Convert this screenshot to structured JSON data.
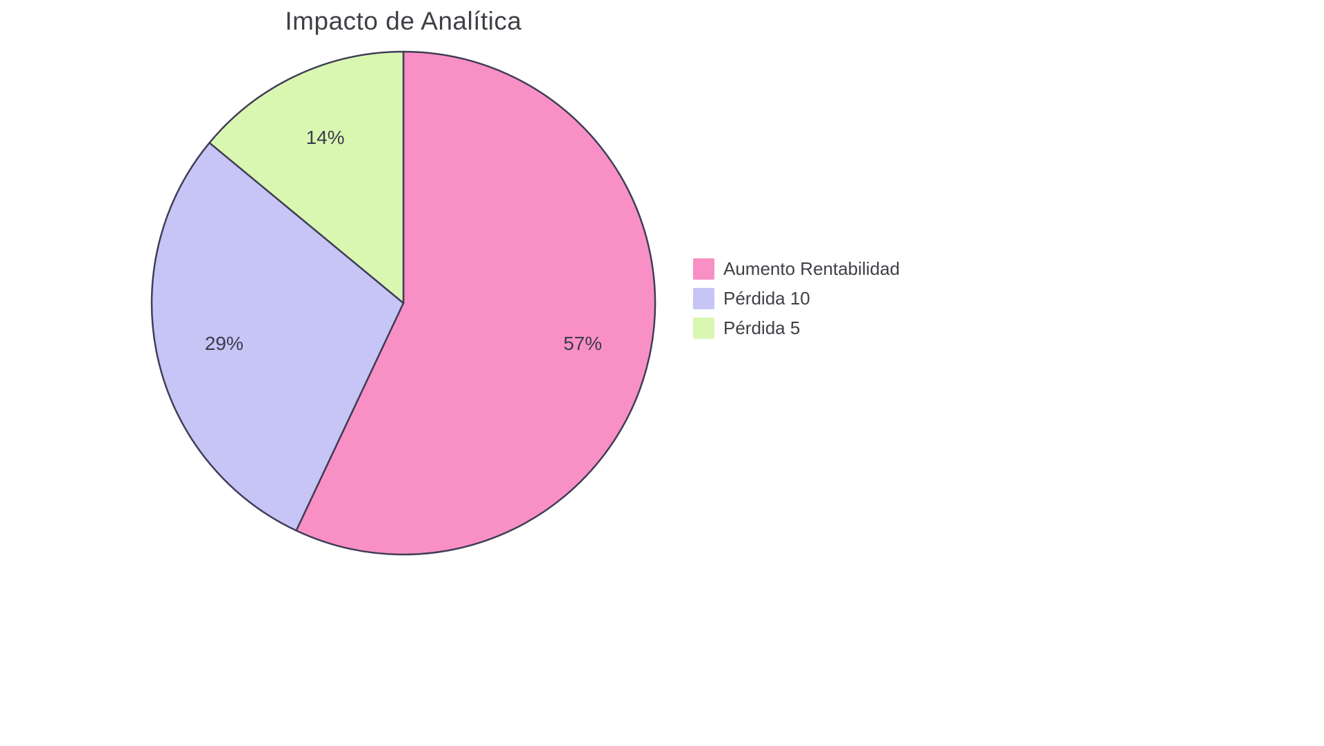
{
  "page": {
    "background": "#FFFFFF"
  },
  "chart_data": {
    "type": "pie",
    "title": "Impacto de Analítica",
    "labels": [
      "Aumento Rentabilidad",
      "Pérdida 10",
      "Pérdida 5"
    ],
    "values": [
      57,
      29,
      14
    ],
    "unit": "%",
    "slice_labels": [
      "57%",
      "29%",
      "14%"
    ],
    "colors": [
      "#F990C5",
      "#C7C5F6",
      "#D9F7B1"
    ],
    "outline_color": "#3F3D56",
    "label_color": "#3B3B4D",
    "start_angle_deg": 0,
    "direction": "clockwise",
    "legend_position": "right",
    "grid": false
  }
}
